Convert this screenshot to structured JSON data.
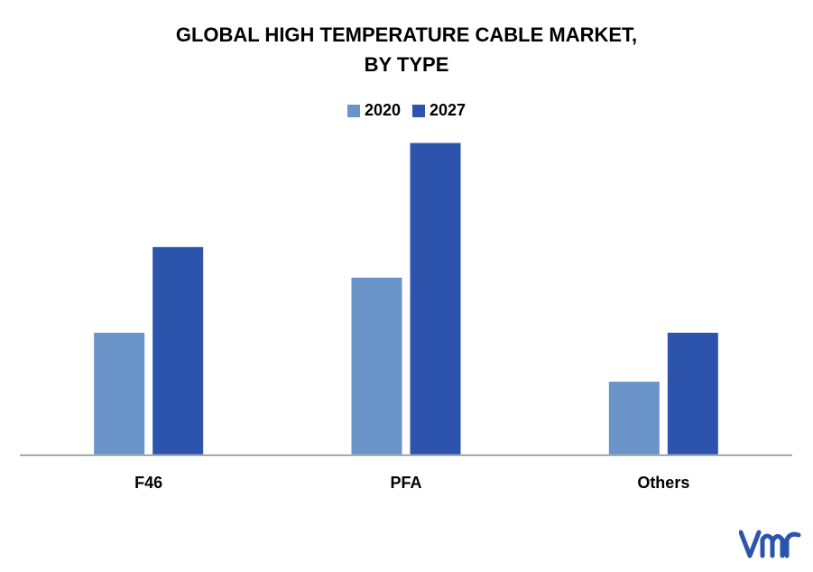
{
  "chart_data": {
    "type": "bar",
    "title_line1": "GLOBAL HIGH TEMPERATURE CABLE MARKET,",
    "title_line2": "BY TYPE",
    "categories": [
      "F46",
      "PFA",
      "Others"
    ],
    "series": [
      {
        "name": "2020",
        "values": [
          2.0,
          2.9,
          1.2
        ],
        "color": "#6a93c8"
      },
      {
        "name": "2027",
        "values": [
          3.4,
          5.1,
          2.0
        ],
        "color": "#2d54ac"
      }
    ],
    "ylim": [
      0,
      5.1
    ],
    "grid": false,
    "legend_position": "top-center",
    "xlabel": "",
    "ylabel": ""
  },
  "logo": {
    "name": "vmr-logo",
    "color": "#2d54ac"
  }
}
